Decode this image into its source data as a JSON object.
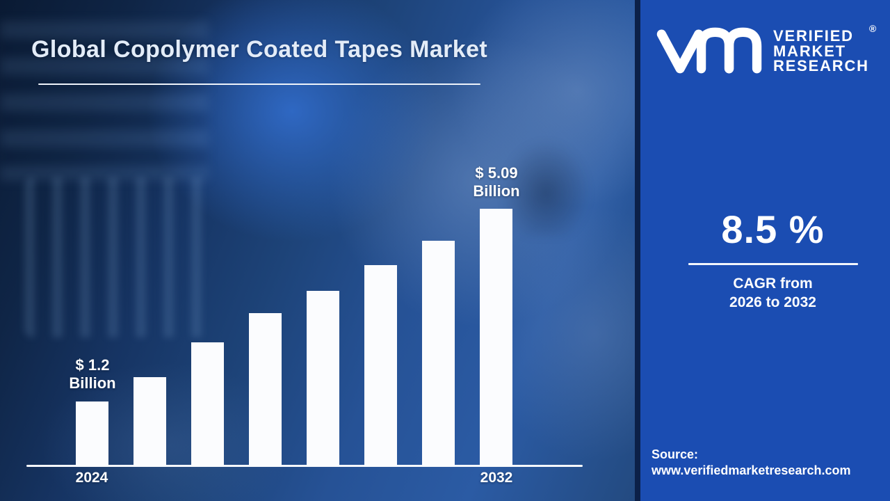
{
  "title": "Global Copolymer Coated Tapes Market",
  "chart_data": {
    "type": "bar",
    "title": "Global Copolymer Coated Tapes Market",
    "unit": "USD Billion",
    "categories": [
      "2024",
      "",
      "",
      "",
      "",
      "",
      "",
      "2032"
    ],
    "values": [
      1.2,
      1.69,
      2.39,
      2.98,
      3.43,
      3.95,
      4.44,
      5.09
    ],
    "x_tick_labels_visible": [
      "2024",
      "2032"
    ],
    "annotations": {
      "first": {
        "line1": "$ 1.2",
        "line2": "Billion"
      },
      "last": {
        "line1": "$ 5.09",
        "line2": "Billion"
      }
    },
    "ylim": [
      0,
      5.5
    ],
    "grid": false,
    "legend": false,
    "bar_color": "#fbfcfe",
    "axis_line_color": "#f6f9fd"
  },
  "panel": {
    "background_color": "#1b4db2",
    "logo": {
      "monogram_icon": "vmr-monogram",
      "brand_line1": "VERIFIED",
      "brand_line2": "MARKET",
      "brand_line3": "RESEARCH",
      "registered_mark": "®"
    },
    "cagr": {
      "value": "8.5 %",
      "caption_line1": "CAGR from",
      "caption_line2": "2026 to 2032"
    },
    "source": {
      "label": "Source:",
      "url": "www.verifiedmarketresearch.com"
    }
  },
  "colors": {
    "background_dark_navy": "#0a1a33",
    "background_mid_blue": "#265296",
    "background_bright_blue": "#2e68c6",
    "panel_blue": "#1b4db2",
    "panel_edge_strip": "#0c2048",
    "text_white": "#ffffff",
    "title_text": "#e3ecf8"
  }
}
